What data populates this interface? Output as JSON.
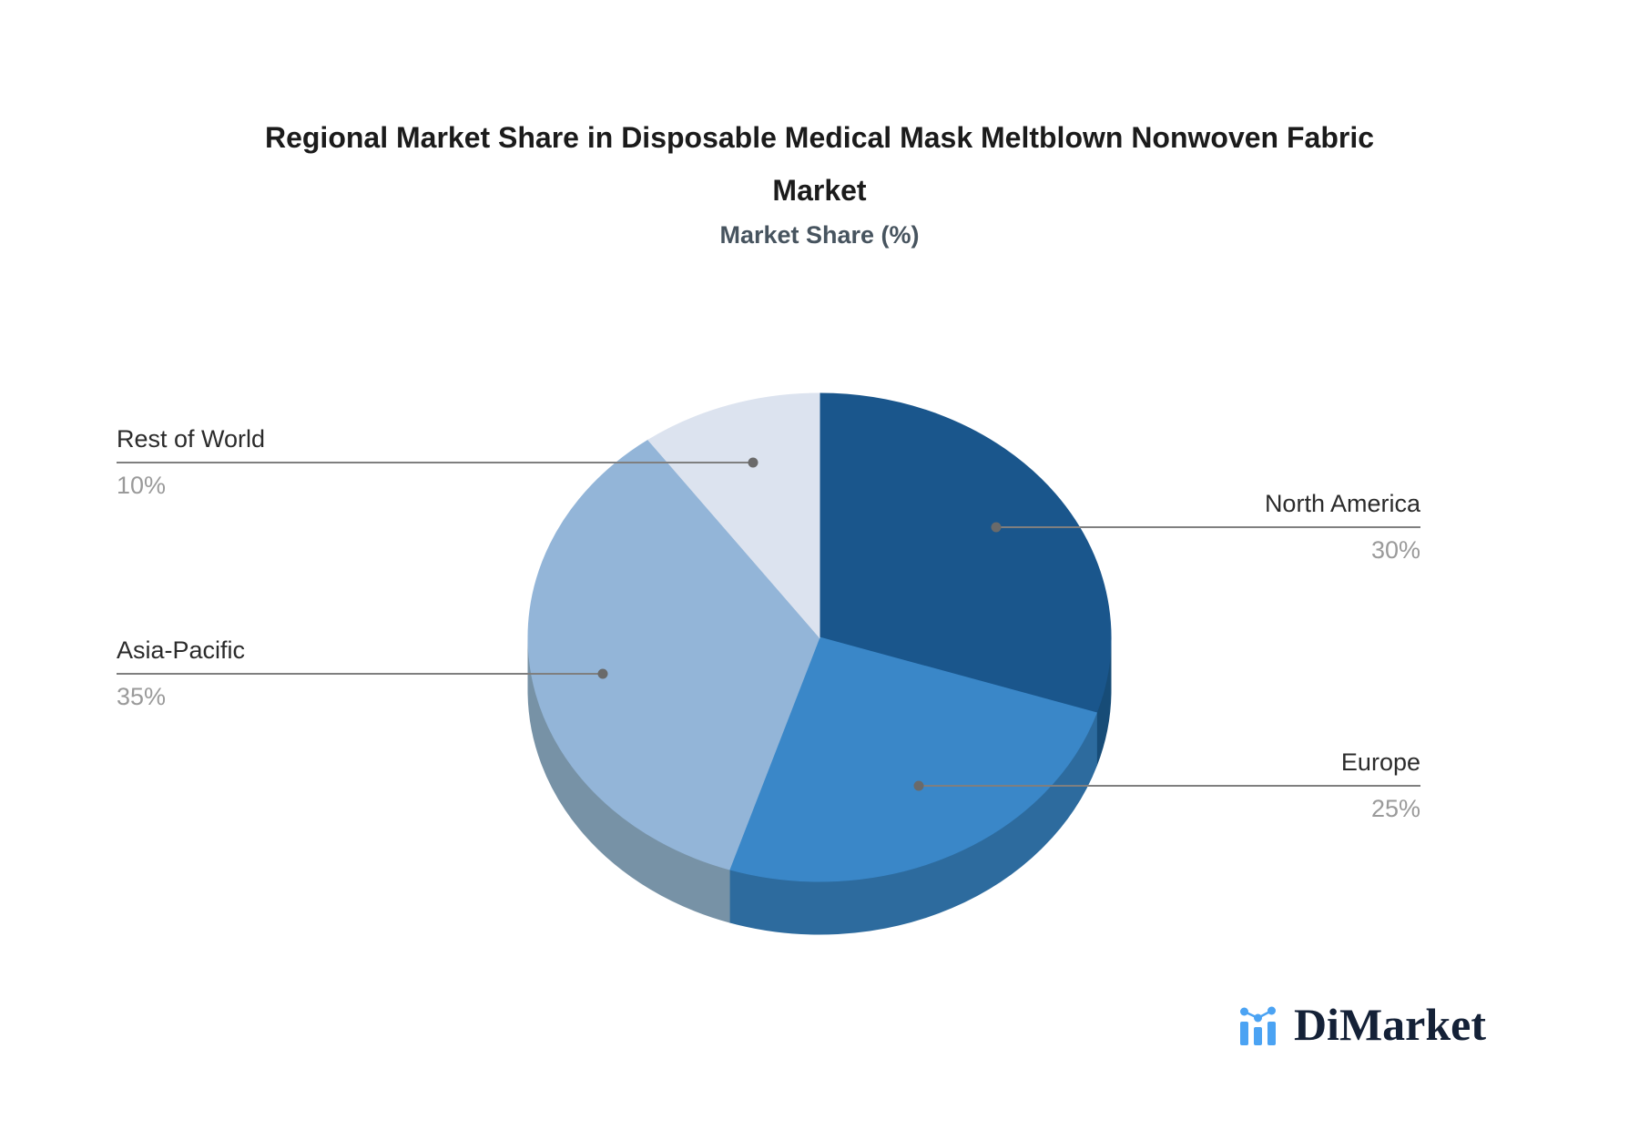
{
  "header": {
    "title_line1": "Regional Market Share in Disposable Medical Mask Meltblown Nonwoven Fabric",
    "title_line2": "Market",
    "subtitle": "Market Share (%)"
  },
  "chart_data": {
    "type": "pie",
    "title": "Regional Market Share in Disposable Medical Mask Meltblown Nonwoven Fabric Market",
    "subtitle": "Market Share (%)",
    "unit": "%",
    "effect": "3d",
    "start_angle_deg": 0,
    "direction": "clockwise",
    "legend_position": "callout-labels",
    "slices": [
      {
        "label": "North America",
        "value": 30,
        "display": "30%",
        "color": "#1A568C",
        "side_color": "#174C77"
      },
      {
        "label": "Europe",
        "value": 25,
        "display": "25%",
        "color": "#3A87C8",
        "side_color": "#2D6B9E"
      },
      {
        "label": "Asia-Pacific",
        "value": 35,
        "display": "35%",
        "color": "#93B5D8",
        "side_color": "#7792A6"
      },
      {
        "label": "Rest of World",
        "value": 10,
        "display": "10%",
        "color": "#DCE3EF",
        "side_color": "#C3CCDA"
      }
    ]
  },
  "styles": {
    "leader_line_color": "#7F7F7F",
    "leader_dot_color": "#6A6A6A",
    "label_color": "#2B2B2B",
    "percent_color": "#9A9A9A",
    "title_color": "#1B1B1B",
    "subtitle_color": "#47545F"
  },
  "logo": {
    "text": "DiMarket",
    "accent_color": "#4BA3F3",
    "text_color": "#142137"
  }
}
